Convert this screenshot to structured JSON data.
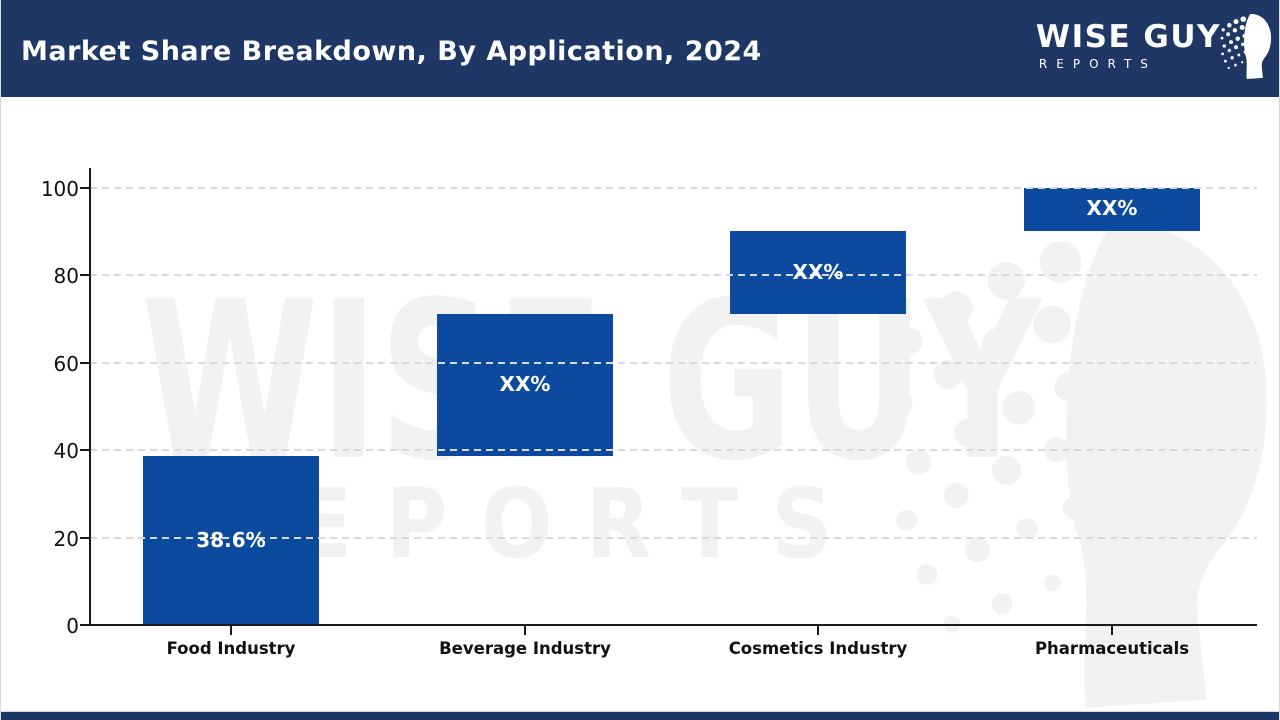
{
  "header": {
    "title": "Market Share Breakdown, By Application, 2024",
    "bg_color": "#1e3765",
    "logo": {
      "line1": "WISE GUY",
      "line2": "REPORTS"
    }
  },
  "watermark": {
    "line1": "WISE GUY",
    "line2": "REPORTS"
  },
  "footer": {
    "bg_color": "#1e3765"
  },
  "chart_data": {
    "type": "bar",
    "subtype": "waterfall",
    "title": "Market Share Breakdown, By Application, 2024",
    "categories": [
      "Food Industry",
      "Beverage Industry",
      "Cosmetics Industry",
      "Pharmaceuticals"
    ],
    "segments": [
      {
        "start": 0,
        "end": 38.6,
        "label": "38.6%"
      },
      {
        "start": 38.6,
        "end": 71,
        "label": "XX%"
      },
      {
        "start": 71,
        "end": 90,
        "label": "XX%"
      },
      {
        "start": 90,
        "end": 100,
        "label": "XX%"
      }
    ],
    "yticks": [
      0,
      20,
      40,
      60,
      80,
      100
    ],
    "ylim": [
      0,
      104
    ],
    "xlabel": "",
    "ylabel": "",
    "bar_color": "#0b4a9e",
    "grid": "horizontal-dashed",
    "gridline_color": "#d9d9d9",
    "legend_position": "none"
  }
}
